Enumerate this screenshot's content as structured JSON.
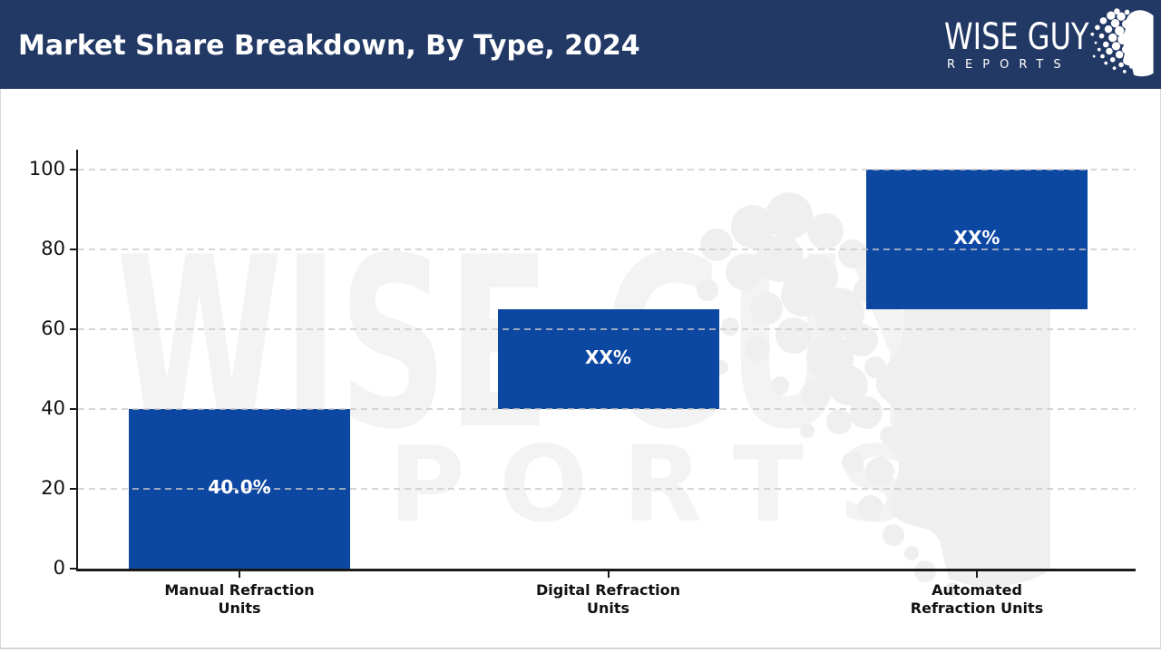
{
  "header": {
    "title": "Market Share Breakdown, By Type, 2024",
    "logo": {
      "line1": "WISE GUY",
      "line2": "REPORTS"
    }
  },
  "watermark": {
    "line1": "WISE GUY",
    "line2": "REPORTS"
  },
  "colors": {
    "header_bg": "#233965",
    "bar": "#0c47a2",
    "axis": "#1a1a1a",
    "grid": "#c9c9c9",
    "watermark": "#f3f3f3",
    "bar_label": "#ffffff",
    "card_border": "#d9d9d9"
  },
  "chart_data": {
    "type": "bar",
    "subtype": "waterfall",
    "title": "Market Share Breakdown, By Type, 2024",
    "categories": [
      "Manual Refraction Units",
      "Digital Refraction Units",
      "Automated Refraction Units"
    ],
    "category_lines": [
      [
        "Manual Refraction",
        "Units"
      ],
      [
        "Digital Refraction",
        "Units"
      ],
      [
        "Automated",
        "Refraction Units"
      ]
    ],
    "segments": [
      {
        "start": 0,
        "end": 40,
        "value": 40,
        "label": "40.0%"
      },
      {
        "start": 40,
        "end": 65,
        "value": 25,
        "label": "XX%"
      },
      {
        "start": 65,
        "end": 100,
        "value": 35,
        "label": "XX%"
      }
    ],
    "xlabel": "",
    "ylabel": "",
    "ylim": [
      0,
      105
    ],
    "yticks": [
      0,
      20,
      40,
      60,
      80,
      100
    ],
    "grid": "horizontal-dashed",
    "legend": "none"
  }
}
